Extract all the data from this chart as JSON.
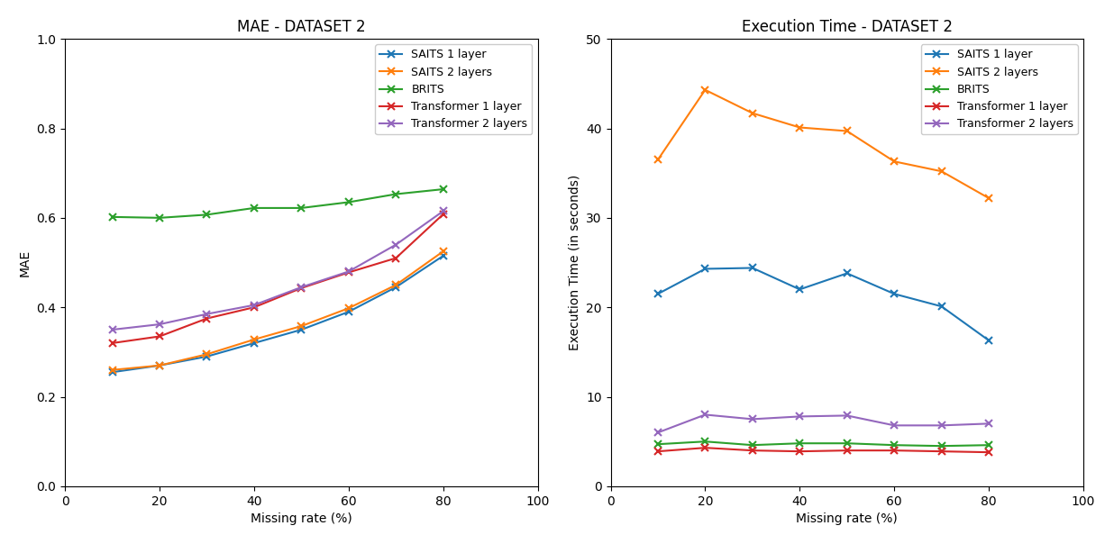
{
  "x": [
    10,
    20,
    30,
    40,
    50,
    60,
    70,
    80
  ],
  "mae": {
    "SAITS 1 layer": [
      0.255,
      0.27,
      0.29,
      0.32,
      0.35,
      0.39,
      0.445,
      0.515
    ],
    "SAITS 2 layers": [
      0.26,
      0.27,
      0.295,
      0.328,
      0.358,
      0.398,
      0.45,
      0.525
    ],
    "BRITS": [
      0.602,
      0.6,
      0.607,
      0.622,
      0.622,
      0.635,
      0.653,
      0.664
    ],
    "Transformer 1 layer": [
      0.32,
      0.335,
      0.375,
      0.4,
      0.443,
      0.478,
      0.51,
      0.608
    ],
    "Transformer 2 layers": [
      0.35,
      0.362,
      0.385,
      0.405,
      0.445,
      0.48,
      0.54,
      0.615
    ]
  },
  "exec": {
    "SAITS 1 layer": [
      21.5,
      24.3,
      24.4,
      22.0,
      23.8,
      21.5,
      20.1,
      16.3
    ],
    "SAITS 2 layers": [
      36.5,
      44.3,
      41.7,
      40.1,
      39.7,
      36.3,
      35.2,
      32.2
    ],
    "BRITS": [
      4.7,
      5.0,
      4.6,
      4.8,
      4.8,
      4.6,
      4.5,
      4.6
    ],
    "Transformer 1 layer": [
      3.9,
      4.3,
      4.0,
      3.9,
      4.0,
      4.0,
      3.9,
      3.8
    ],
    "Transformer 2 layers": [
      6.0,
      8.0,
      7.5,
      7.8,
      7.9,
      6.8,
      6.8,
      7.0
    ]
  },
  "colors": {
    "SAITS 1 layer": "#1f77b4",
    "SAITS 2 layers": "#ff7f0e",
    "BRITS": "#2ca02c",
    "Transformer 1 layer": "#d62728",
    "Transformer 2 layers": "#9467bd"
  },
  "mae_title": "MAE - DATASET 2",
  "exec_title": "Execution Time - DATASET 2",
  "mae_ylabel": "MAE",
  "exec_ylabel": "Execution Time (in seconds)",
  "xlabel": "Missing rate (%)",
  "mae_ylim": [
    0.0,
    1.0
  ],
  "exec_ylim": [
    0,
    50
  ],
  "xlim": [
    0,
    100
  ],
  "mae_yticks": [
    0.0,
    0.2,
    0.4,
    0.6,
    0.8,
    1.0
  ],
  "exec_yticks": [
    0,
    10,
    20,
    30,
    40,
    50
  ],
  "xticks": [
    0,
    20,
    40,
    60,
    80,
    100
  ]
}
